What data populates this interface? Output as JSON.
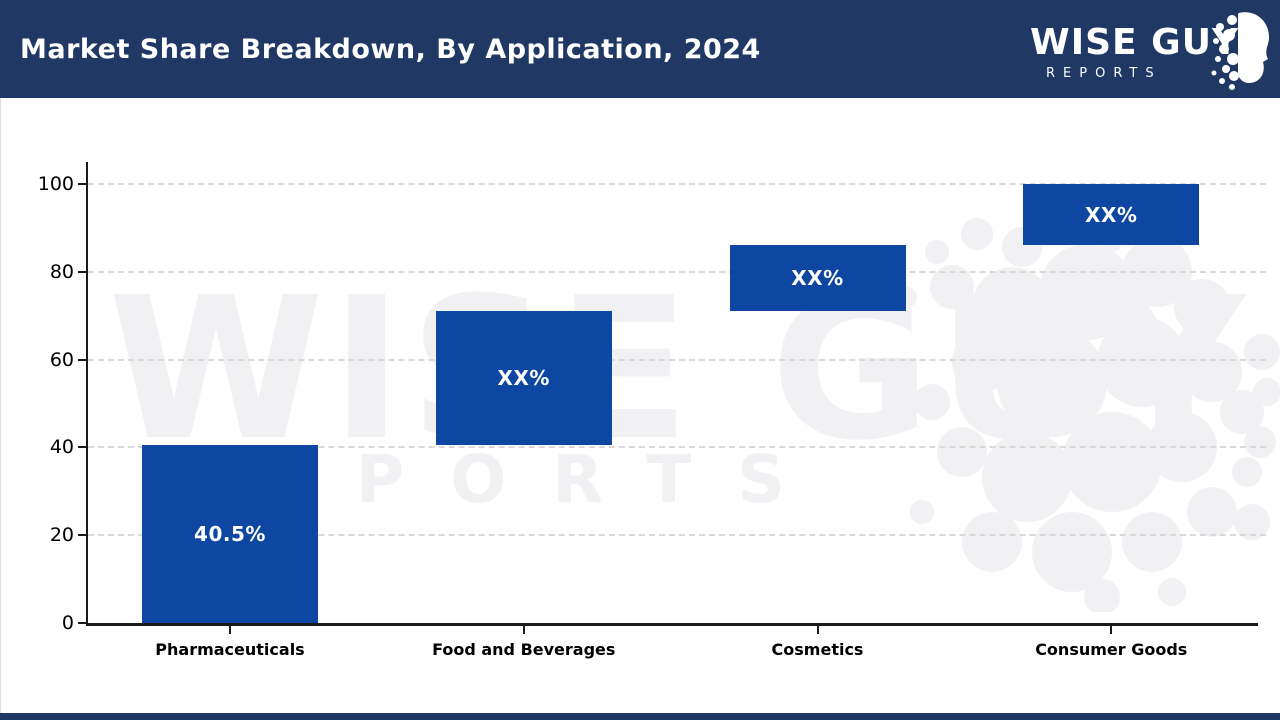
{
  "header": {
    "title": "Market Share Breakdown, By Application, 2024",
    "logo": {
      "name": "WISE GUY",
      "tagline": "REPORTS"
    }
  },
  "watermark": {
    "name": "WISE GUY",
    "tagline": "REPORTS"
  },
  "chart_data": {
    "type": "bar",
    "variant": "waterfall",
    "title": "Market Share Breakdown, By Application, 2024",
    "categories": [
      "Pharmaceuticals",
      "Food and Beverages",
      "Cosmetics",
      "Consumer Goods"
    ],
    "segments": [
      {
        "category": "Pharmaceuticals",
        "start": 0,
        "end": 40.5,
        "label": "40.5%"
      },
      {
        "category": "Food and Beverages",
        "start": 40.5,
        "end": 71,
        "label": "XX%"
      },
      {
        "category": "Cosmetics",
        "start": 71,
        "end": 86,
        "label": "XX%"
      },
      {
        "category": "Consumer Goods",
        "start": 86,
        "end": 100,
        "label": "XX%"
      }
    ],
    "y_ticks": [
      0,
      20,
      40,
      60,
      80,
      100
    ],
    "ylim": [
      0,
      105
    ],
    "xlabel": "",
    "ylabel": "",
    "grid": "horizontal-dashed",
    "legend_position": "none",
    "bar_color": "#0d47a1",
    "label_color": "#ffffff"
  },
  "colors": {
    "header_bg": "#1f3864",
    "footer_bg": "#1f3864",
    "bar": "#0d47a1",
    "watermark": "#f1f1f4",
    "gridline": "#d9d9d9",
    "axis": "#1a1a1a"
  }
}
